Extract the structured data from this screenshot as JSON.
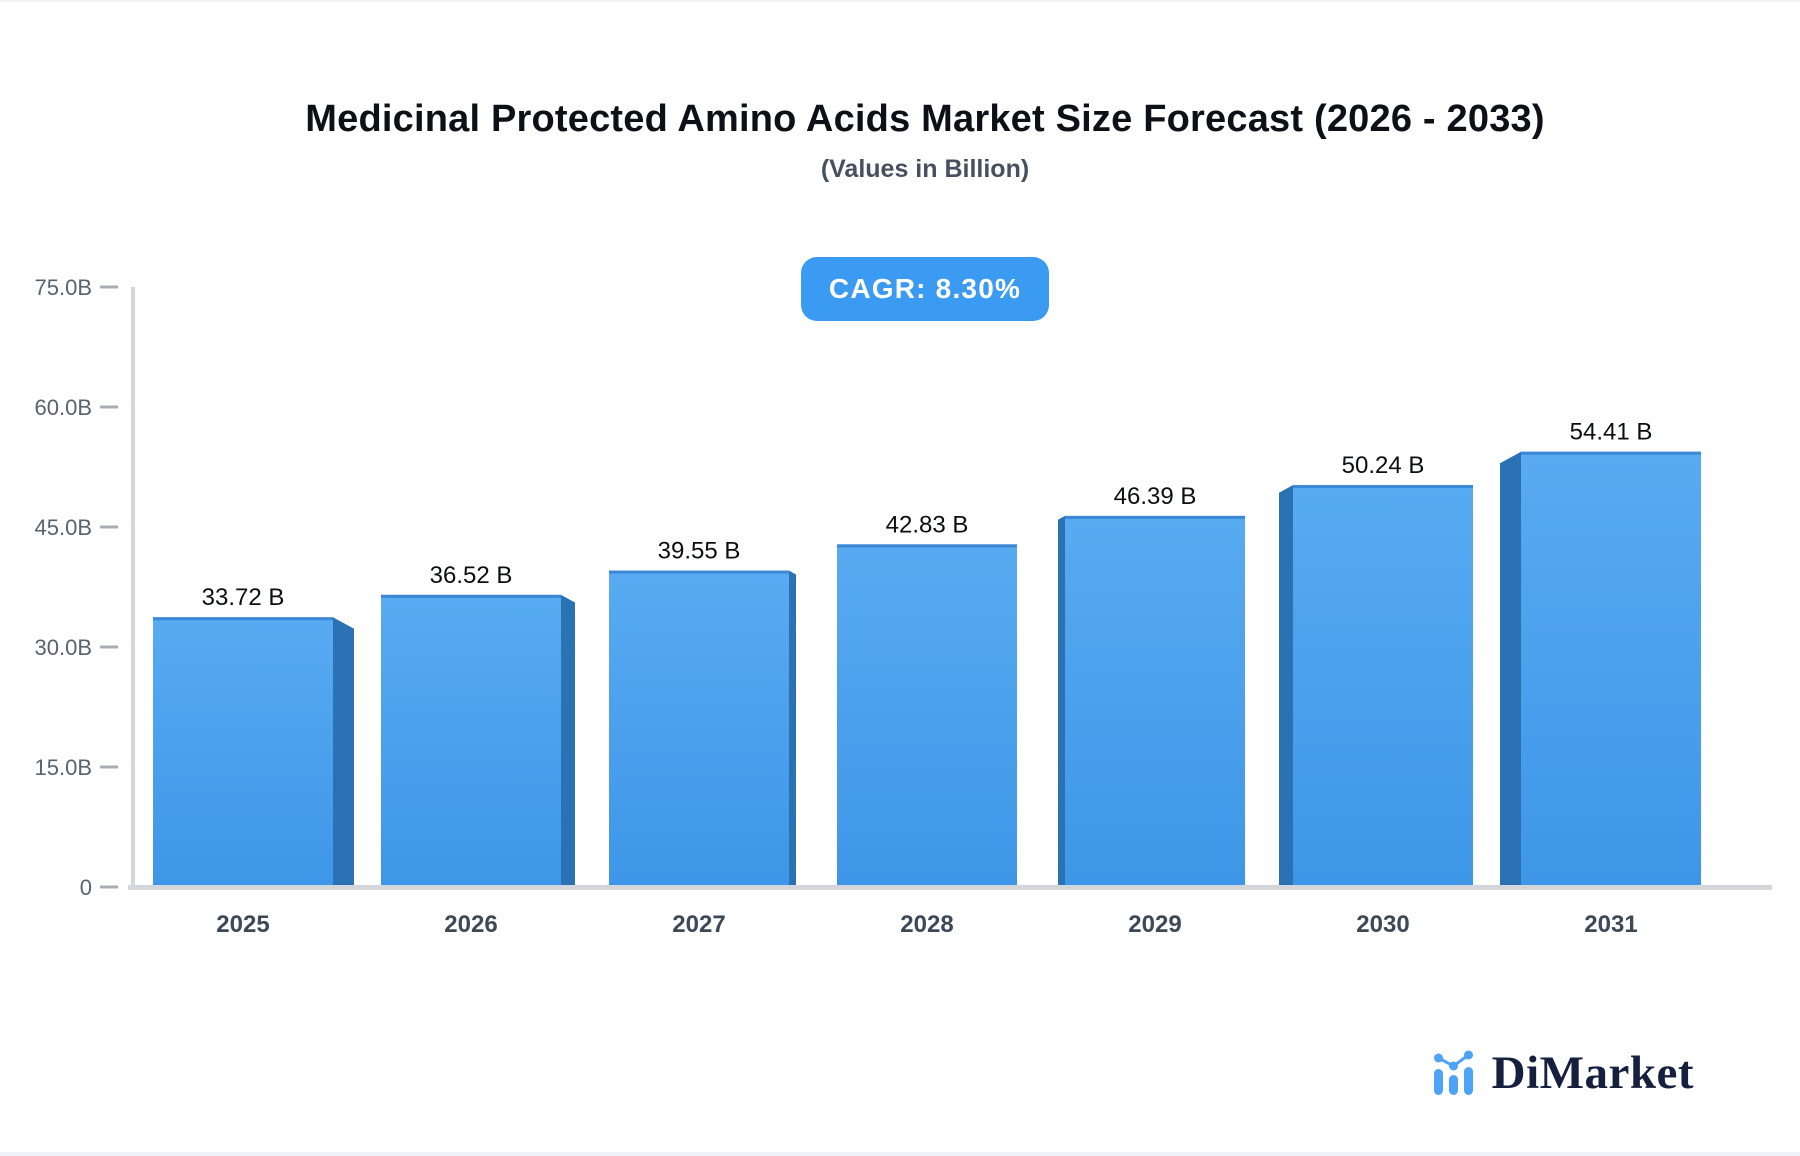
{
  "header": {
    "title": "Medicinal Protected Amino Acids Market Size Forecast (2026 - 2033)",
    "subtitle": "(Values in Billion)",
    "cagr_badge": "CAGR: 8.30%",
    "badge_color": "#3b9bf2"
  },
  "chart_data": {
    "type": "bar",
    "title": "Medicinal Protected Amino Acids Market Size Forecast (2026 - 2033)",
    "subtitle": "(Values in Billion)",
    "xlabel": "",
    "ylabel": "",
    "categories": [
      "2025",
      "2026",
      "2027",
      "2028",
      "2029",
      "2030",
      "2031"
    ],
    "values": [
      33.72,
      36.52,
      39.55,
      42.83,
      46.39,
      50.24,
      54.41
    ],
    "value_labels": [
      "33.72 B",
      "36.52 B",
      "39.55 B",
      "42.83 B",
      "46.39 B",
      "50.24 B",
      "54.41 B"
    ],
    "ylim": [
      0,
      75
    ],
    "y_ticks": [
      {
        "value": 0,
        "label": "0"
      },
      {
        "value": 15,
        "label": "15.0B"
      },
      {
        "value": 30,
        "label": "30.0B"
      },
      {
        "value": 45,
        "label": "45.0B"
      },
      {
        "value": 60,
        "label": "60.0B"
      },
      {
        "value": 75,
        "label": "75.0B"
      }
    ],
    "grid": false,
    "legend_position": "none",
    "colors": {
      "bar_top": "#58abf1",
      "bar_bottom": "#3e96e8",
      "bar_side": "#2b72b4",
      "bar_top_stroke": "#3c88d4",
      "axis_line": "#d3d6db",
      "tick_mark": "#a7adb5",
      "tick_label": "#59636f",
      "category_label": "#3d4958",
      "value_label": "#0b0e13"
    }
  },
  "branding": {
    "logo_text": "DiMarket",
    "logo_icon": "bar-chart-logo-icon",
    "icon_color": "#4da3f7",
    "text_color": "#15203f"
  }
}
